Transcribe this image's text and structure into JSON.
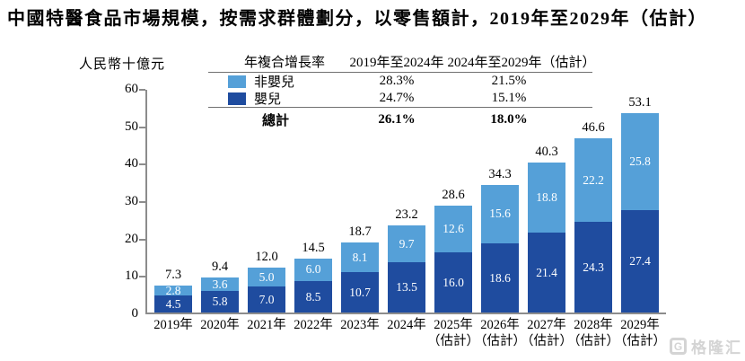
{
  "title": "中國特醫食品市場規模，按需求群體劃分，以零售額計，2019年至2029年（估計）",
  "y_axis": {
    "unit_label": "人民幣十億元",
    "ticks": [
      0,
      10,
      20,
      30,
      40,
      50,
      60
    ],
    "max": 60
  },
  "cagr_table": {
    "header": {
      "label": "年複合增長率",
      "period1": "2019年至2024年",
      "period2": "2024年至2029年（估計）"
    },
    "rows": [
      {
        "legend": "非嬰兒",
        "color": "#55a0d8",
        "period1": "28.3%",
        "period2": "21.5%"
      },
      {
        "legend": "嬰兒",
        "color": "#1f4c9f",
        "period1": "24.7%",
        "period2": "15.1%"
      }
    ],
    "total": {
      "label": "總計",
      "period1": "26.1%",
      "period2": "18.0%"
    }
  },
  "chart_data": {
    "type": "bar",
    "stacked": true,
    "title": "中國特醫食品市場規模，按需求群體劃分，以零售額計，2019年至2029年（估計）",
    "ylabel": "人民幣十億元",
    "ylim": [
      0,
      60
    ],
    "grid": false,
    "categories": [
      {
        "label": "2019年",
        "sublabel": ""
      },
      {
        "label": "2020年",
        "sublabel": ""
      },
      {
        "label": "2021年",
        "sublabel": ""
      },
      {
        "label": "2022年",
        "sublabel": ""
      },
      {
        "label": "2023年",
        "sublabel": ""
      },
      {
        "label": "2024年",
        "sublabel": ""
      },
      {
        "label": "2025年",
        "sublabel": "（估計）"
      },
      {
        "label": "2026年",
        "sublabel": "（估計）"
      },
      {
        "label": "2027年",
        "sublabel": "（估計）"
      },
      {
        "label": "2028年",
        "sublabel": "（估計）"
      },
      {
        "label": "2029年",
        "sublabel": "（估計）"
      }
    ],
    "series": [
      {
        "name": "嬰兒",
        "color": "#1f4c9f",
        "values": [
          4.5,
          5.8,
          7.0,
          8.5,
          10.7,
          13.5,
          16.0,
          18.6,
          21.4,
          24.3,
          27.4
        ]
      },
      {
        "name": "非嬰兒",
        "color": "#55a0d8",
        "values": [
          2.8,
          3.6,
          5.0,
          6.0,
          8.1,
          9.7,
          12.6,
          15.6,
          18.8,
          22.2,
          25.8
        ]
      }
    ],
    "totals": [
      7.3,
      9.4,
      12.0,
      14.5,
      18.7,
      23.2,
      28.6,
      34.3,
      40.3,
      46.6,
      53.1
    ]
  },
  "watermark": {
    "logo": "G",
    "text": "格隆汇"
  }
}
